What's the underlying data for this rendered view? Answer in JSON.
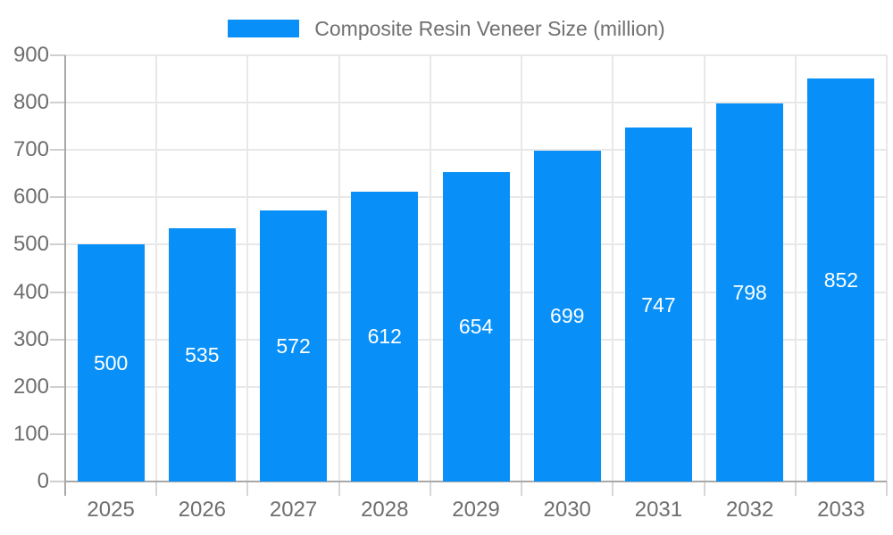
{
  "legend": {
    "label": "Composite Resin Veneer Size (million)"
  },
  "chart_data": {
    "type": "bar",
    "title": "Composite Resin Veneer Size (million)",
    "series_name": "Composite Resin Veneer Size (million)",
    "categories": [
      "2025",
      "2026",
      "2027",
      "2028",
      "2029",
      "2030",
      "2031",
      "2032",
      "2033"
    ],
    "values": [
      500,
      535,
      572,
      612,
      654,
      699,
      747,
      798,
      852
    ],
    "xlabel": "",
    "ylabel": "",
    "ylim": [
      0,
      900
    ],
    "yticks": [
      0,
      100,
      200,
      300,
      400,
      500,
      600,
      700,
      800,
      900
    ],
    "grid": true,
    "legend_position": "top",
    "value_labels": "inside-center"
  },
  "colors": {
    "bar": "#0890f8",
    "grid": "#e8e8e8",
    "axis": "#a8a8a8",
    "y_tick": "#cfcfcf",
    "x_tick": "#d6d6d6",
    "axis_text": "#6e6e6e",
    "legend_text": "#707070",
    "value_text": "#ffffff",
    "background": "#ffffff"
  }
}
